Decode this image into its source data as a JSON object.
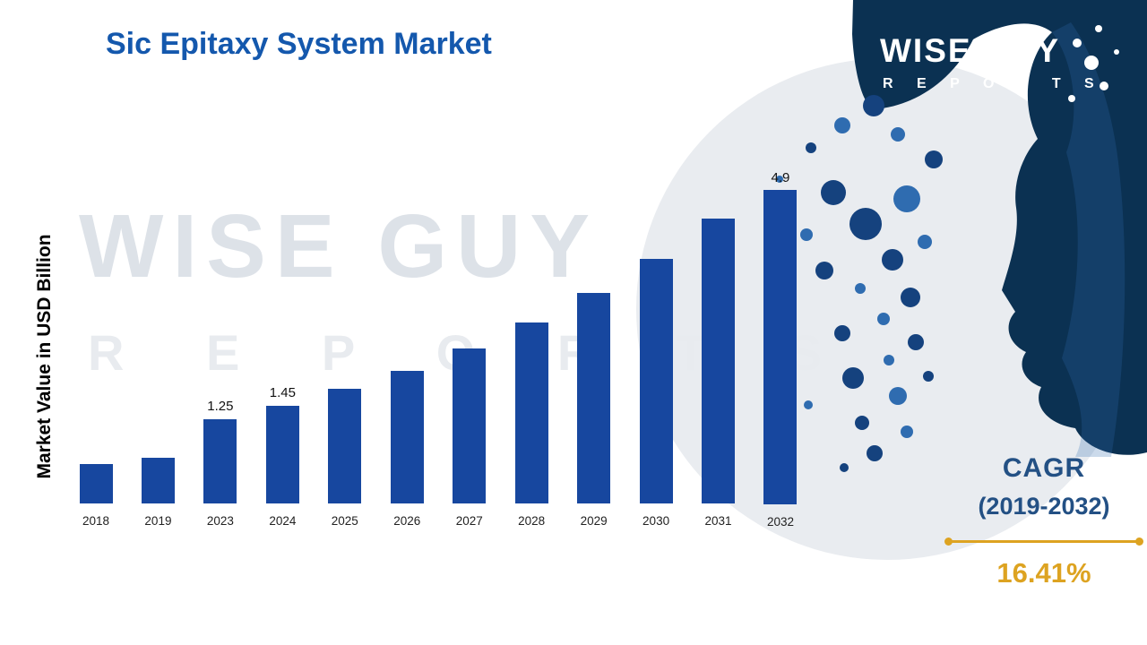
{
  "page": {
    "title": "Sic Epitaxy System Market"
  },
  "logo": {
    "name": "WISE GUY",
    "reports": "R E P O R T S"
  },
  "watermark": {
    "name": "WISE GUY",
    "reports": "R E P O R T S"
  },
  "cagr": {
    "label": "CAGR",
    "range": "(2019-2032)",
    "value": "16.41%"
  },
  "colors": {
    "title_blue": "#1458ad",
    "bar_blue": "#17479f",
    "navy": "#0b3152",
    "gold": "#dda321",
    "cagr_text_blue": "#235084",
    "watermark_gray": "#dde2e8",
    "circle_gray": "#e9ecf0"
  },
  "chart_data": {
    "type": "bar",
    "title": "Sic Epitaxy System Market",
    "xlabel": "",
    "ylabel": "Market Value in USD Billion",
    "categories": [
      "2018",
      "2019",
      "2023",
      "2024",
      "2025",
      "2026",
      "2027",
      "2028",
      "2029",
      "2030",
      "2031",
      "2032"
    ],
    "values": [
      0.58,
      0.68,
      1.25,
      1.45,
      1.69,
      1.96,
      2.29,
      2.67,
      3.11,
      3.62,
      4.21,
      4.9
    ],
    "bar_labels": [
      "",
      "",
      "1.25",
      "1.45",
      "",
      "",
      "",
      "",
      "",
      "",
      "",
      "4.9"
    ],
    "ylim": [
      0,
      5
    ],
    "grid": false,
    "legend": null,
    "unit": "USD Billion"
  }
}
